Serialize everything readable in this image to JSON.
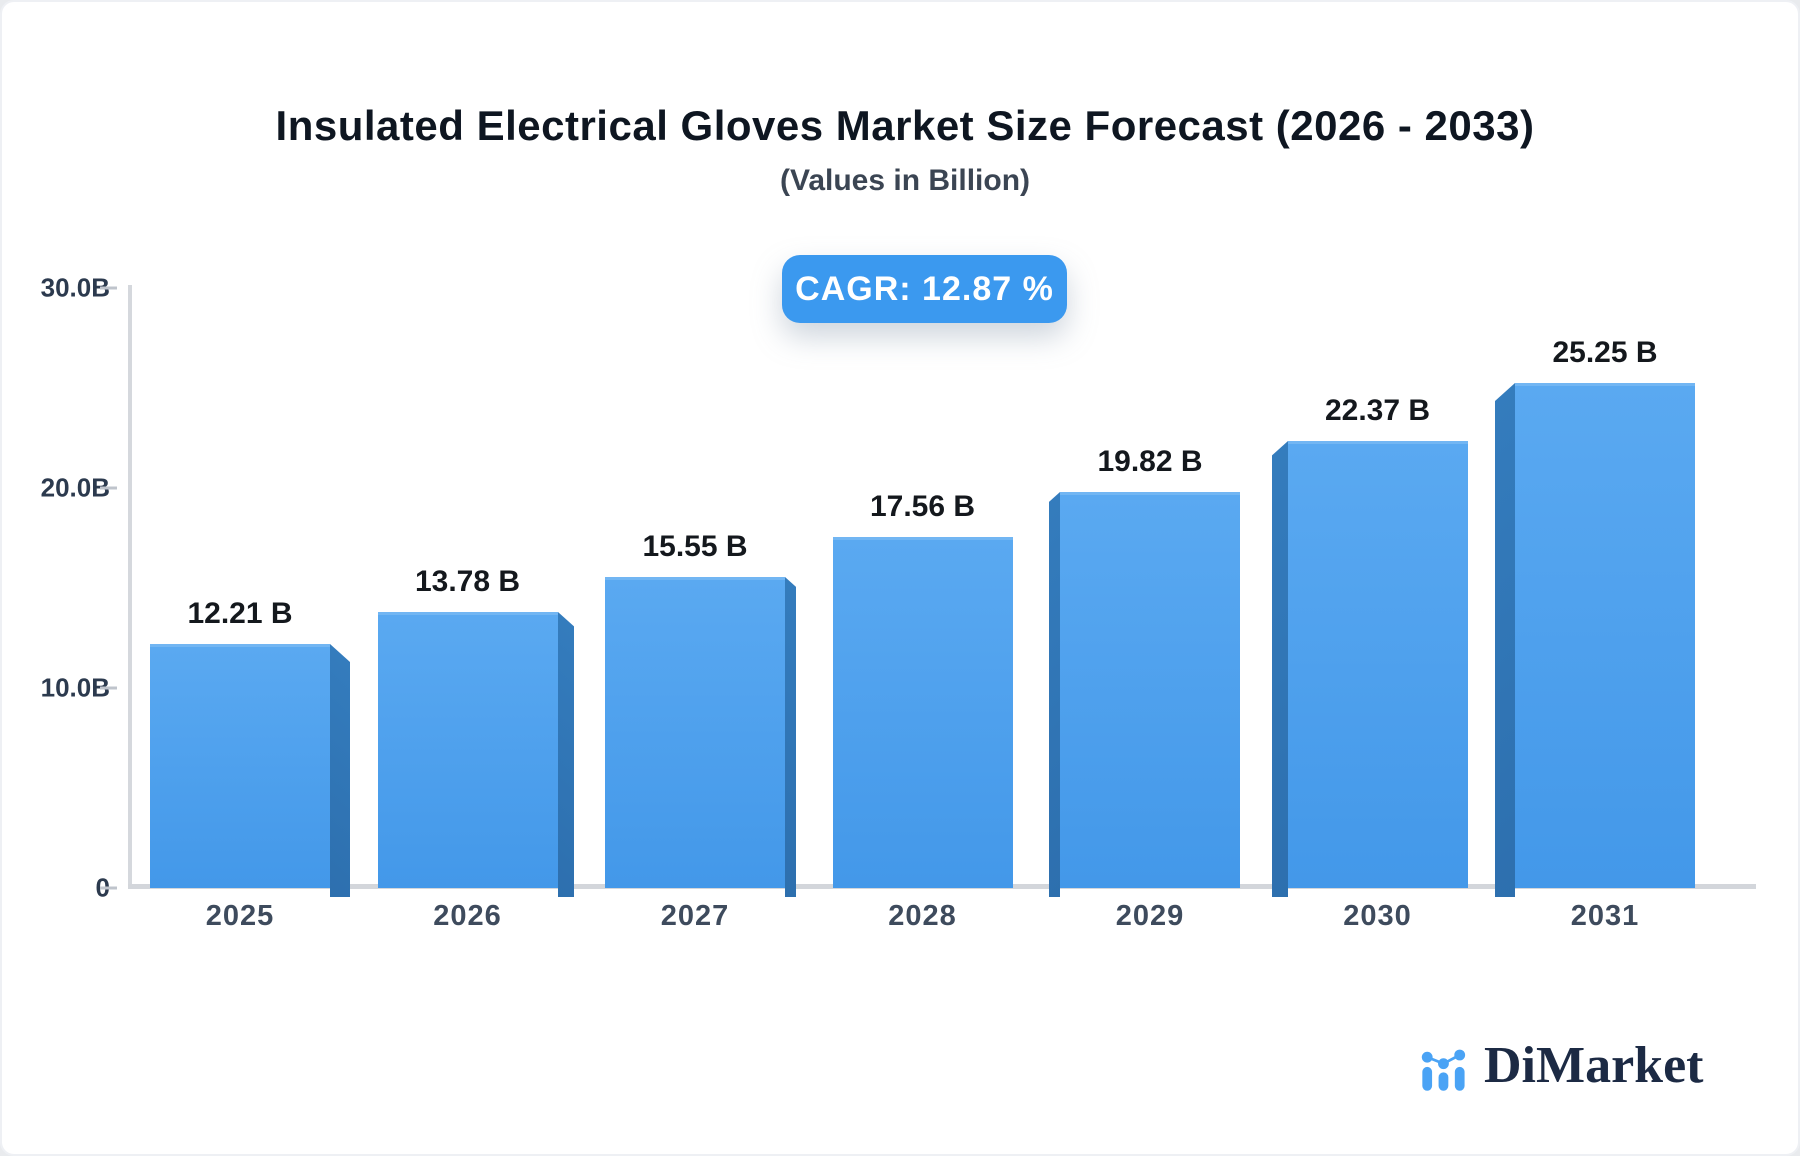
{
  "header": {
    "title": "Insulated Electrical Gloves Market Size Forecast (2026 - 2033)",
    "subtitle": "(Values in Billion)",
    "cagr_label": "CAGR: 12.87 %"
  },
  "chart_data": {
    "type": "bar",
    "title": "Insulated Electrical Gloves Market Size Forecast (2026 - 2033)",
    "subtitle": "(Values in Billion)",
    "cagr_pct": 12.87,
    "categories": [
      "2025",
      "2026",
      "2027",
      "2028",
      "2029",
      "2030",
      "2031"
    ],
    "values": [
      12.21,
      13.78,
      15.55,
      17.56,
      19.82,
      22.37,
      25.25
    ],
    "value_labels": [
      "12.21 B",
      "13.78 B",
      "15.55 B",
      "17.56 B",
      "19.82 B",
      "22.37 B",
      "25.25 B"
    ],
    "unit": "Billion",
    "ylabel": "",
    "xlabel": "",
    "ylim": [
      0,
      30
    ],
    "y_ticks": [
      {
        "label": "30.0B",
        "value": 30
      },
      {
        "label": "20.0B",
        "value": 20
      },
      {
        "label": "10.0B",
        "value": 10
      },
      {
        "label": "0",
        "value": 0
      }
    ],
    "grid": false,
    "legend": "none",
    "colors": {
      "bar_top": "#5aa9f1",
      "bar_bottom": "#4398e9",
      "bar_side_3d": "#2f74b5",
      "badge_bg": "#3b99ef",
      "axis_line": "#d5d8dd",
      "title_text": "#0e1621",
      "subtitle_text": "#3b4553",
      "tick_text": "#2c3a4e"
    }
  },
  "footer": {
    "brand": "DiMarket",
    "brand_icon_color": "#4aa3f5"
  }
}
